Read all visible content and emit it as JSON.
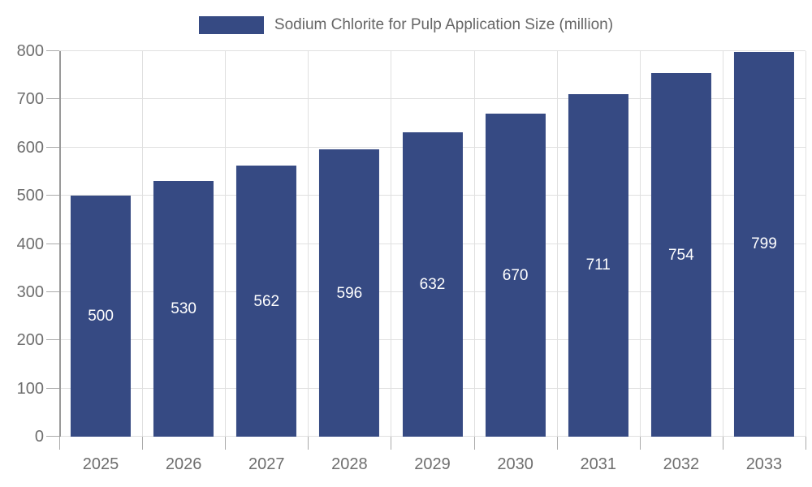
{
  "chart_data": {
    "type": "bar",
    "title": "Sodium Chlorite for Pulp Application Size (million)",
    "series_name": "Sodium Chlorite for Pulp Application Size (million)",
    "categories": [
      "2025",
      "2026",
      "2027",
      "2028",
      "2029",
      "2030",
      "2031",
      "2032",
      "2033"
    ],
    "values": [
      500,
      530,
      562,
      596,
      632,
      670,
      711,
      754,
      799
    ],
    "xlabel": "",
    "ylabel": "",
    "ylim": [
      0,
      800
    ],
    "ytick_step": 100,
    "grid": "both-horizontal-and-vertical",
    "legend_position": "top-center",
    "value_labels": "inside-center-white"
  },
  "colors": {
    "bar": "#364A83",
    "value_label": "#FFFFFF",
    "legend_text": "#666666",
    "axis_text": "#6E6E6E",
    "grid": "#E0E0E0",
    "axis_line": "#999999",
    "tick": "#AAAAAA",
    "background": "#FFFFFF"
  }
}
